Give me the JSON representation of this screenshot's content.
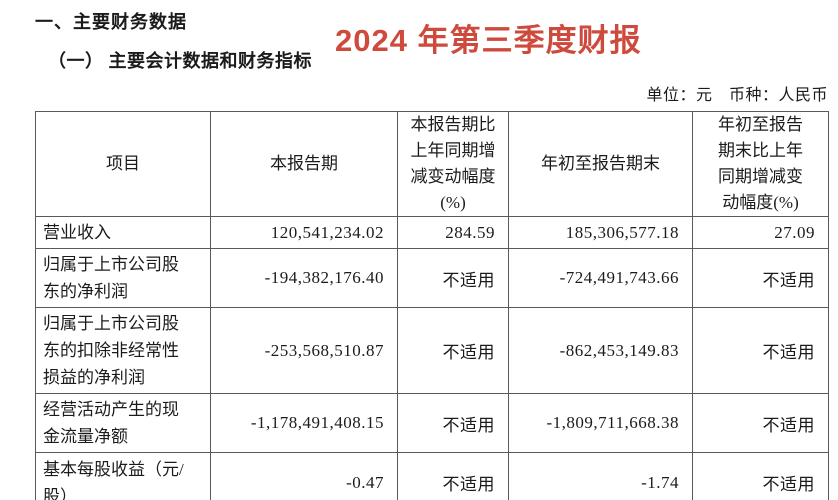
{
  "page": {
    "section_heading": "一、主要财务数据",
    "subsection_heading": "（一） 主要会计数据和财务指标",
    "title": "2024 年第三季度财报",
    "unit_note": "单位：元　币种：人民币"
  },
  "colors": {
    "title_red": "#cd4a3c",
    "table_border": "#595959",
    "text": "#1b1b1b",
    "background": "#ffffff"
  },
  "table": {
    "headers": [
      "项目",
      "本报告期",
      "本报告期比\n上年同期增\n减变动幅度\n(%)",
      "年初至报告期末",
      "年初至报告\n期末比上年\n同期增减变\n动幅度(%)"
    ],
    "rows": [
      [
        "营业收入",
        "120,541,234.02",
        "284.59",
        "185,306,577.18",
        "27.09"
      ],
      [
        "归属于上市公司股东的净利润",
        "-194,382,176.40",
        "不适用",
        "-724,491,743.66",
        "不适用"
      ],
      [
        "归属于上市公司股东的扣除非经常性损益的净利润",
        "-253,568,510.87",
        "不适用",
        "-862,453,149.83",
        "不适用"
      ],
      [
        "经营活动产生的现金流量净额",
        "-1,178,491,408.15",
        "不适用",
        "-1,809,711,668.38",
        "不适用"
      ],
      [
        "基本每股收益（元/股）",
        "-0.47",
        "不适用",
        "-1.74",
        "不适用"
      ]
    ]
  }
}
